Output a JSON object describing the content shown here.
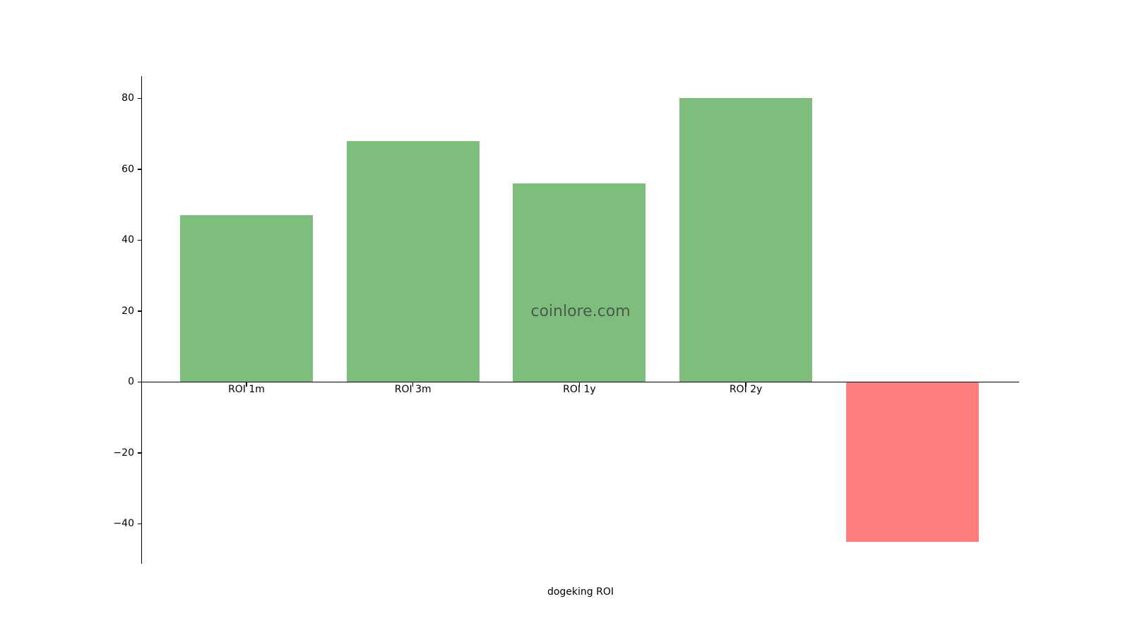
{
  "chart_data": {
    "type": "bar",
    "title": "dogeking ROI",
    "xlabel": "dogeking ROI",
    "ylabel": "",
    "watermark": "coinlore.com",
    "categories": [
      "ROI 1m",
      "ROI 3m",
      "ROI 1y",
      "ROI 2y",
      ""
    ],
    "values": [
      47,
      68,
      56,
      80,
      -45
    ],
    "yticks": [
      80,
      60,
      40,
      20,
      0,
      -20,
      -40
    ],
    "ylim": [
      -51.25,
      86.25
    ],
    "grid": false,
    "legend": false,
    "colors": {
      "positive": "#7dbe7d",
      "negative": "#fe7f7f",
      "axis": "#000000",
      "tick_label": "#000000",
      "watermark": "#404040",
      "background": "#ffffff"
    }
  }
}
